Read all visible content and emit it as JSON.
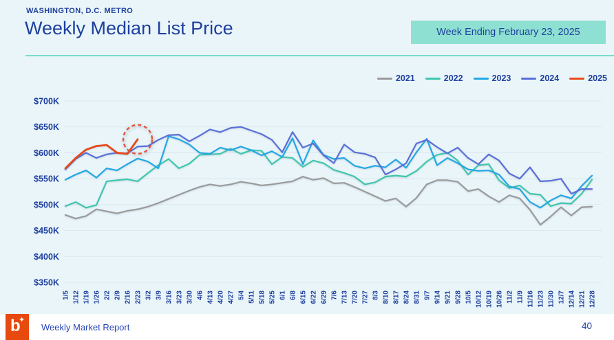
{
  "header": {
    "kicker": "WASHINGTON, D.C. METRO",
    "title": "Weekly Median List Price",
    "badge": "Week Ending February 23, 2025"
  },
  "footer": {
    "logo_letter": "b",
    "logo_sparkle": "✦",
    "report_name": "Weekly Market Report",
    "page_number": "40"
  },
  "colors": {
    "background": "#e9f5f9",
    "accent_teal": "#79dccd",
    "badge_bg": "#8ee0d2",
    "heading_blue": "#1e3f9e",
    "grid": "#d9e6ee",
    "logo_orange": "#e8490f",
    "annotation_red": "#e4553e"
  },
  "chart_data": {
    "type": "line",
    "title": "Weekly Median List Price",
    "xlabel": "",
    "ylabel": "",
    "ylim": [
      350,
      700
    ],
    "yticks": [
      700,
      650,
      600,
      550,
      500,
      450,
      400,
      350
    ],
    "ytick_format": "${v}K",
    "grid": "horizontal",
    "legend_position": "top-right",
    "categories": [
      "1/5",
      "1/12",
      "1/19",
      "1/26",
      "2/2",
      "2/9",
      "2/16",
      "2/23",
      "3/2",
      "3/9",
      "3/16",
      "3/23",
      "3/30",
      "4/6",
      "4/13",
      "4/20",
      "4/27",
      "5/4",
      "5/11",
      "5/18",
      "5/25",
      "6/1",
      "6/8",
      "6/15",
      "6/22",
      "6/29",
      "7/6",
      "7/13",
      "7/20",
      "7/27",
      "8/3",
      "8/10",
      "8/17",
      "8/24",
      "8/31",
      "9/7",
      "9/14",
      "9/21",
      "9/28",
      "10/5",
      "10/12",
      "10/19",
      "10/26",
      "11/2",
      "11/9",
      "11/16",
      "11/23",
      "11/30",
      "12/7",
      "12/14",
      "12/21",
      "12/28"
    ],
    "series": [
      {
        "name": "2021",
        "color": "#9b9b9b",
        "width": 2.2,
        "values": [
          480,
          473,
          478,
          491,
          487,
          483,
          488,
          491,
          496,
          503,
          511,
          519,
          527,
          534,
          539,
          536,
          539,
          544,
          541,
          537,
          539,
          542,
          545,
          554,
          548,
          551,
          541,
          542,
          534,
          525,
          516,
          507,
          512,
          496,
          513,
          539,
          547,
          547,
          544,
          526,
          530,
          516,
          505,
          518,
          512,
          490,
          461,
          477,
          495,
          479,
          495,
          496
        ]
      },
      {
        "name": "2022",
        "color": "#3fc7ad",
        "width": 2.2,
        "values": [
          497,
          505,
          494,
          499,
          545,
          547,
          549,
          545,
          561,
          576,
          588,
          570,
          579,
          596,
          597,
          598,
          608,
          598,
          605,
          604,
          578,
          592,
          590,
          573,
          585,
          580,
          567,
          561,
          554,
          539,
          543,
          554,
          556,
          554,
          565,
          583,
          596,
          600,
          585,
          558,
          576,
          578,
          547,
          532,
          537,
          521,
          519,
          497,
          503,
          502,
          521,
          548
        ]
      },
      {
        "name": "2023",
        "color": "#22a7e5",
        "width": 2.2,
        "values": [
          548,
          558,
          566,
          552,
          570,
          566,
          578,
          589,
          583,
          570,
          632,
          626,
          616,
          600,
          598,
          610,
          605,
          612,
          605,
          595,
          603,
          592,
          628,
          578,
          624,
          596,
          588,
          590,
          575,
          570,
          575,
          572,
          587,
          571,
          601,
          627,
          576,
          590,
          580,
          568,
          565,
          566,
          558,
          535,
          530,
          505,
          494,
          508,
          518,
          512,
          536,
          556
        ]
      },
      {
        "name": "2024",
        "color": "#5a6fd8",
        "width": 2.2,
        "values": [
          568,
          588,
          600,
          590,
          597,
          600,
          599,
          612,
          613,
          625,
          634,
          635,
          622,
          633,
          645,
          640,
          648,
          650,
          643,
          636,
          625,
          601,
          640,
          610,
          618,
          595,
          580,
          616,
          601,
          598,
          591,
          558,
          568,
          580,
          618,
          625,
          611,
          599,
          610,
          590,
          578,
          597,
          585,
          560,
          550,
          572,
          545,
          546,
          550,
          521,
          530,
          530
        ]
      },
      {
        "name": "2025",
        "color": "#e8491a",
        "width": 2.8,
        "values": [
          570,
          590,
          606,
          613,
          615,
          600,
          598,
          626
        ]
      }
    ],
    "annotation": {
      "type": "dashed-circle",
      "series": "2025",
      "category": "2/23",
      "value": 626,
      "color": "#e4553e",
      "radius": 21
    }
  }
}
